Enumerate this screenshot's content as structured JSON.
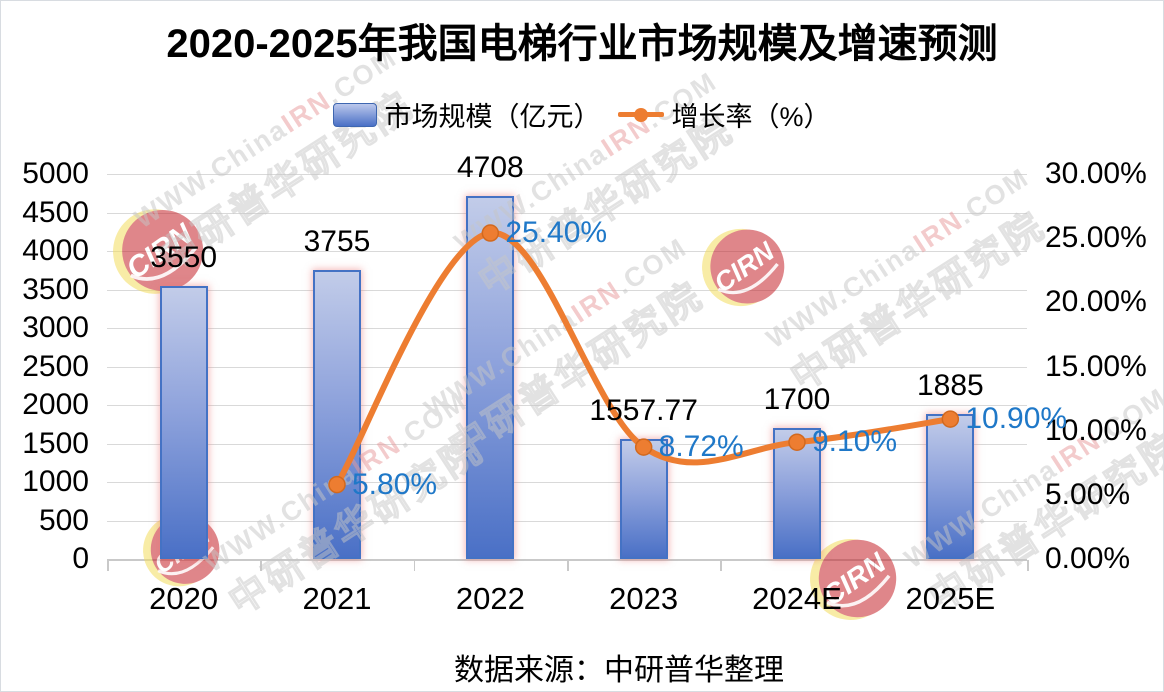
{
  "title": "2020-2025年我国电梯行业市场规模及增速预测",
  "legend": {
    "bar_label": "市场规模（亿元）",
    "line_label": "增长率（%）"
  },
  "source_note": "数据来源：中研普华整理",
  "watermark": {
    "site_prefix": "WWW.China",
    "site_mid": "IRN",
    "site_suffix": ".COM",
    "org": "中研普华研究院",
    "logo_text": "CIRN"
  },
  "colors": {
    "bar_fill_top": "#c2cce9",
    "bar_fill_bottom": "#4a70c6",
    "bar_border": "#4472c4",
    "bar_glow": "#ea7474",
    "line": "#ed7d31",
    "marker_stroke": "#d2691e",
    "value_label": "#000000",
    "pct_label": "#1f78c8",
    "grid": "#d9d9d9",
    "axis": "#c9c9c9",
    "watermark_gray": "#c6c6c6",
    "watermark_accent": "#e8999b",
    "logo_red": "#c5242c",
    "logo_yellow": "#f4dd5e"
  },
  "chart_data": {
    "type": "bar+line combo",
    "title": "2020-2025年我国电梯行业市场规模及增速预测",
    "categories": [
      "2020",
      "2021",
      "2022",
      "2023",
      "2024E",
      "2025E"
    ],
    "series": [
      {
        "name": "市场规模（亿元）",
        "type": "bar",
        "axis": "left",
        "values": [
          3550,
          3755,
          4708,
          1557.77,
          1700,
          1885
        ],
        "data_labels": [
          "3550",
          "3755",
          "4708",
          "1557.77",
          "1700",
          "1885"
        ]
      },
      {
        "name": "增长率（%）",
        "type": "line",
        "axis": "right",
        "values_percent": [
          null,
          5.8,
          25.4,
          8.72,
          9.1,
          10.9
        ],
        "data_labels": [
          null,
          "5.80%",
          "25.40%",
          "8.72%",
          "9.10%",
          "10.90%"
        ]
      }
    ],
    "left_axis": {
      "min": 0,
      "max": 5000,
      "step": 500,
      "tick_labels": [
        "0",
        "500",
        "1000",
        "1500",
        "2000",
        "2500",
        "3000",
        "3500",
        "4000",
        "4500",
        "5000"
      ]
    },
    "right_axis": {
      "min_pct": 0,
      "max_pct": 30,
      "step_pct": 5,
      "tick_labels": [
        "0.00%",
        "5.00%",
        "10.00%",
        "15.00%",
        "20.00%",
        "25.00%",
        "30.00%"
      ]
    },
    "grid": "horizontal",
    "legend_position": "top",
    "line_style": "smooth"
  }
}
